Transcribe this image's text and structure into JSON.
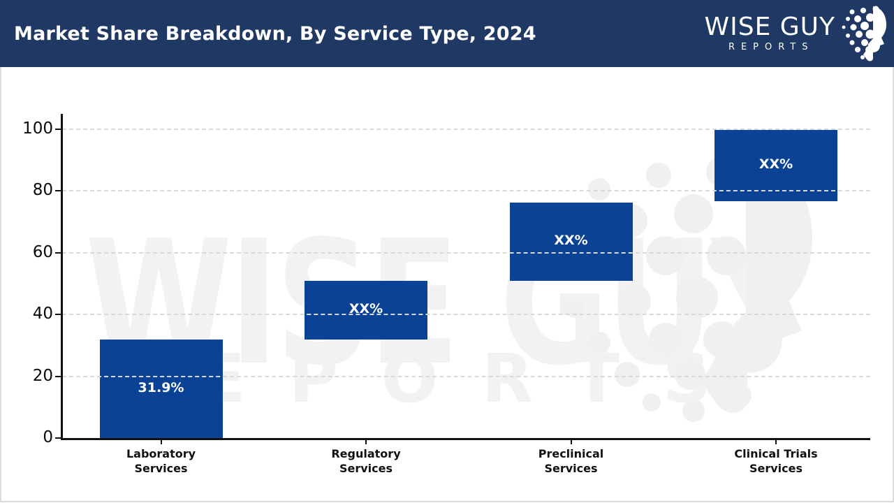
{
  "header": {
    "title": "Market Share Breakdown, By Service Type, 2024",
    "brand_line1": "WISE GUY",
    "brand_line2": "REPORTS"
  },
  "watermark": {
    "line1": "WISE GUY",
    "line2": "REPORTS"
  },
  "colors": {
    "header_bg": "#1f3864",
    "bar": "#0a4296",
    "gridline": "#d9d9d9",
    "watermark": "#f2f2f3"
  },
  "chart_data": {
    "type": "bar",
    "subtype": "waterfall",
    "title": "Market Share Breakdown, By Service Type, 2024",
    "categories": [
      "Laboratory Services",
      "Regulatory Services",
      "Preclinical Services",
      "Clinical Trials Services"
    ],
    "bars": [
      {
        "category_lines": [
          "Laboratory",
          "Services"
        ],
        "start": 0,
        "end": 31.9,
        "label": "31.9%"
      },
      {
        "category_lines": [
          "Regulatory",
          "Services"
        ],
        "start": 31.9,
        "end": 51.0,
        "label": "XX%"
      },
      {
        "category_lines": [
          "Preclinical",
          "Services"
        ],
        "start": 51.0,
        "end": 76.3,
        "label": "XX%"
      },
      {
        "category_lines": [
          "Clinical Trials",
          "Services"
        ],
        "start": 76.6,
        "end": 99.8,
        "label": "XX%"
      }
    ],
    "y_ticks": [
      0,
      20,
      40,
      60,
      80,
      100
    ],
    "ylim": [
      0,
      105
    ],
    "xlabel": "",
    "ylabel": "",
    "grid": true,
    "legend": false,
    "bar_color": "#0a4296"
  }
}
